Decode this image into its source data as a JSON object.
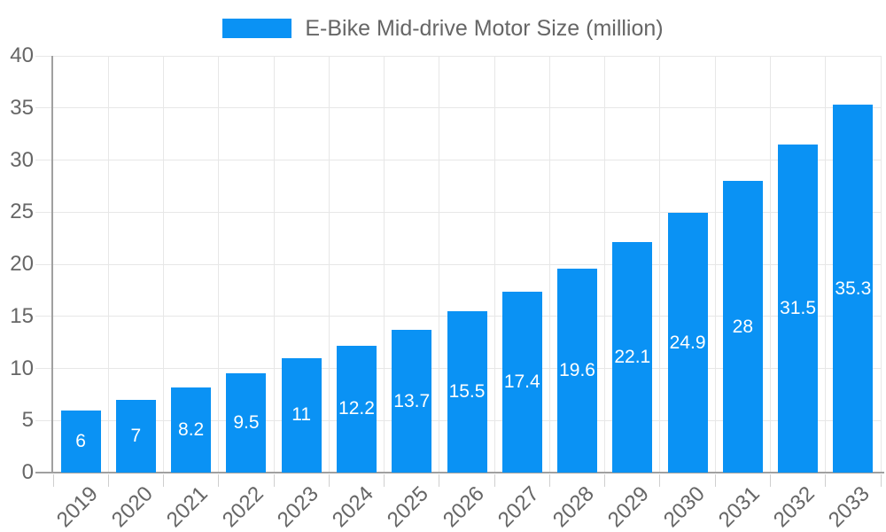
{
  "legend": {
    "label": "E-Bike Mid-drive Motor Size (million)"
  },
  "chart_data": {
    "type": "bar",
    "title": "E-Bike Mid-drive Motor Size (million)",
    "categories": [
      "2019",
      "2020",
      "2021",
      "2022",
      "2023",
      "2024",
      "2025",
      "2026",
      "2027",
      "2028",
      "2029",
      "2030",
      "2031",
      "2032",
      "2033"
    ],
    "values": [
      6,
      7,
      8.2,
      9.5,
      11,
      12.2,
      13.7,
      15.5,
      17.4,
      19.6,
      22.1,
      24.9,
      28,
      31.5,
      35.3
    ],
    "value_labels": [
      "6",
      "7",
      "8.2",
      "9.5",
      "11",
      "12.2",
      "13.7",
      "15.5",
      "17.4",
      "19.6",
      "22.1",
      "24.9",
      "28",
      "31.5",
      "35.3"
    ],
    "xlabel": "",
    "ylabel": "",
    "ylim": [
      0,
      40
    ],
    "ytick_step": 5,
    "yticks": [
      "0",
      "5",
      "10",
      "15",
      "20",
      "25",
      "30",
      "35",
      "40"
    ],
    "grid": true,
    "legend_position": "top-center",
    "value_label_position": "inside-center",
    "colors": {
      "bar": "#0a92f4",
      "value_label": "#ffffff",
      "axis_line": "#a0a0a0",
      "gridline": "#e7e7e7",
      "tick": "#cfcfcf",
      "tick_label": "#666666",
      "legend_text": "#666666",
      "background": "#ffffff"
    }
  }
}
